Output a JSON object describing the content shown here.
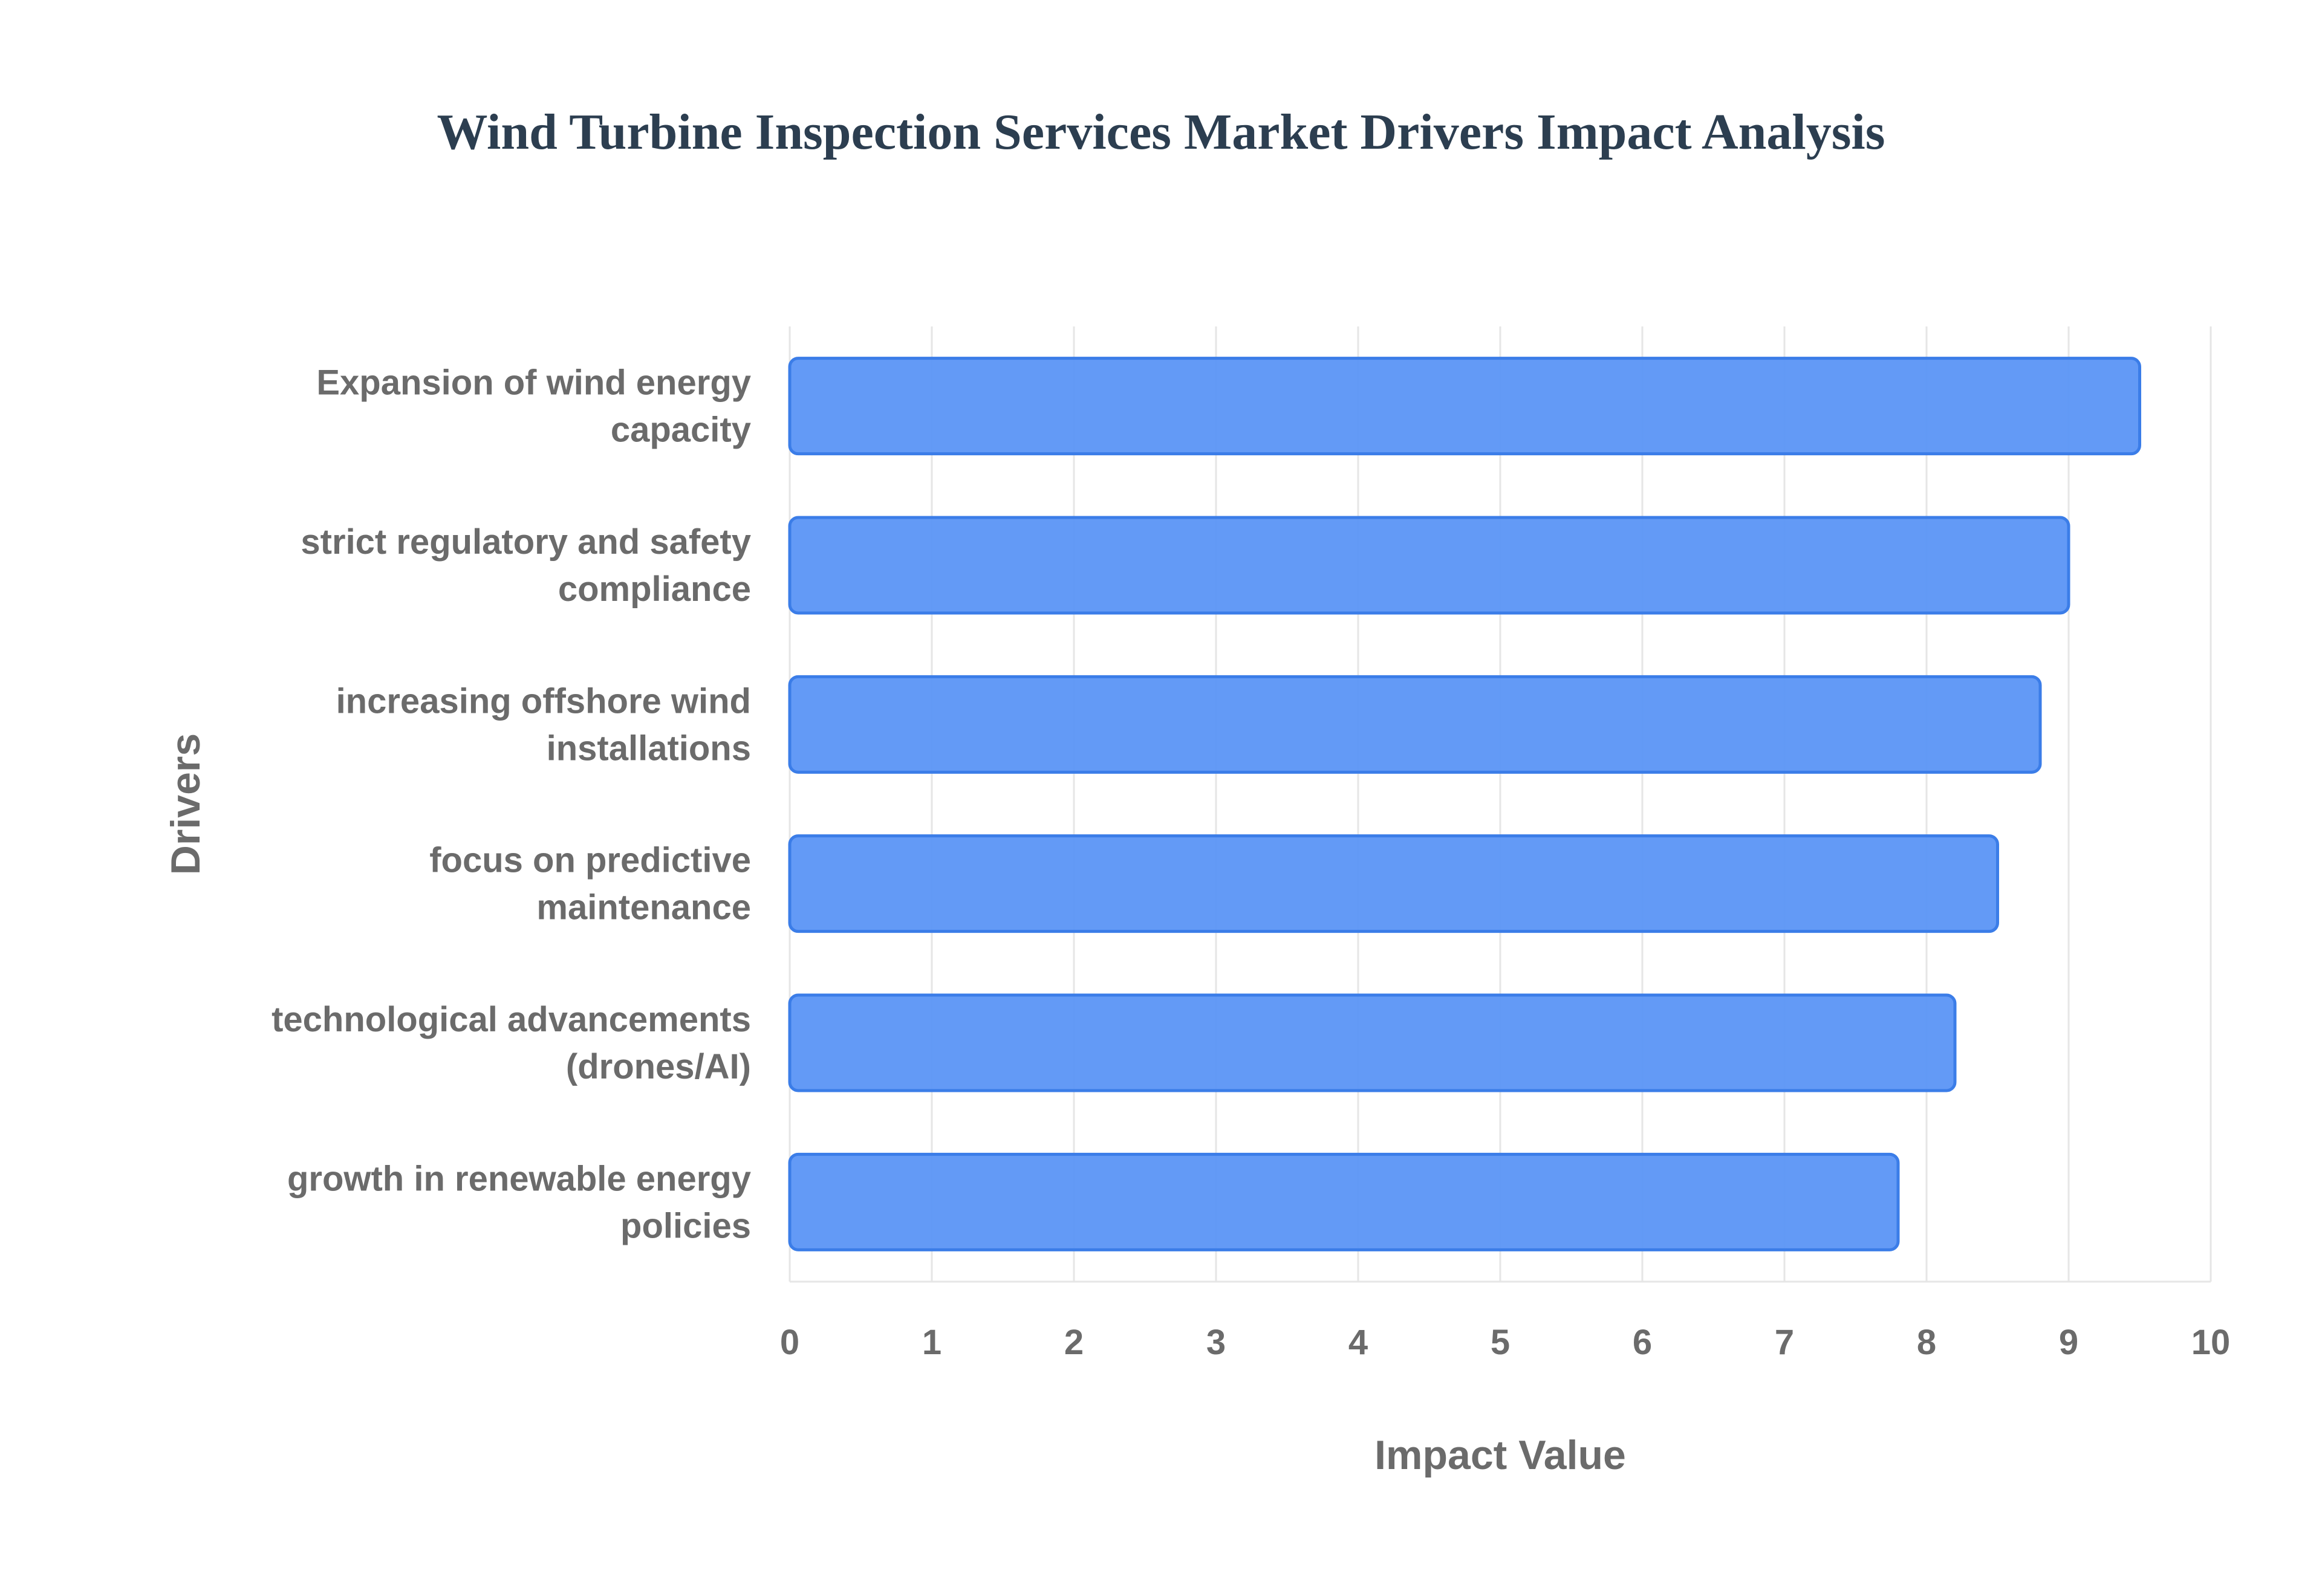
{
  "chart_data": {
    "type": "bar",
    "orientation": "horizontal",
    "title": "Wind Turbine Inspection Services Market Drivers Impact Analysis",
    "xlabel": "Impact Value",
    "ylabel": "Drivers",
    "categories": [
      [
        "Expansion of wind energy",
        "capacity"
      ],
      [
        "strict regulatory and safety",
        "compliance"
      ],
      [
        "increasing offshore wind",
        "installations"
      ],
      [
        "focus on predictive",
        "maintenance"
      ],
      [
        "technological advancements",
        "(drones/AI)"
      ],
      [
        "growth in renewable energy",
        "policies"
      ]
    ],
    "values": [
      9.5,
      9.0,
      8.8,
      8.5,
      8.2,
      7.8
    ],
    "xlim": [
      0,
      10
    ],
    "xticks": [
      "0",
      "1",
      "2",
      "3",
      "4",
      "5",
      "6",
      "7",
      "8",
      "9",
      "10"
    ],
    "grid": true,
    "legend": "none",
    "colors": {
      "bar_fill": "#5b95f5",
      "bar_stroke": "#3b7de8",
      "title": "#2c3e50",
      "text": "#6b6b6b",
      "grid": "#e6e6e6"
    }
  }
}
